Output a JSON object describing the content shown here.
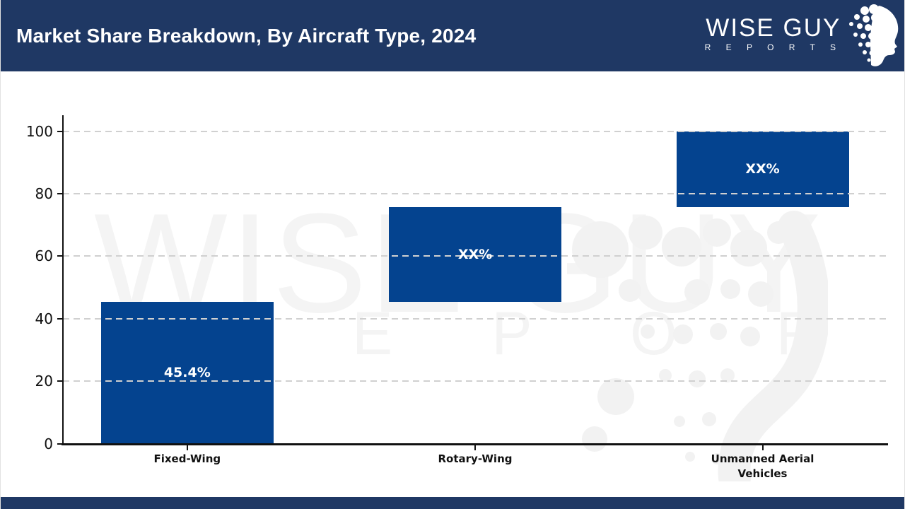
{
  "header": {
    "title": "Market Share Breakdown, By Aircraft Type, 2024",
    "logo": {
      "line1": "WISE GUY",
      "line2": "R E P O R T S"
    }
  },
  "watermark": {
    "line1": "WISE GUY",
    "line2": "R E P O R T S"
  },
  "colors": {
    "header_bg": "#1f3864",
    "footer_bg": "#1f3864",
    "bar": "#04438f",
    "gridline": "#d0d0d0",
    "axis": "#111111",
    "bar_label_text": "#ffffff",
    "title_text": "#ffffff",
    "watermark": "#f4f4f4"
  },
  "chart_data": {
    "type": "bar",
    "subtype": "waterfall",
    "title": "Market Share Breakdown, By Aircraft Type, 2024",
    "categories": [
      "Fixed-Wing",
      "Rotary-Wing",
      "Unmanned Aerial Vehicles"
    ],
    "segments": [
      {
        "label": "Fixed-Wing",
        "display": "Fixed-Wing",
        "start": 0,
        "end": 45.4,
        "value_label": "45.4%"
      },
      {
        "label": "Rotary-Wing",
        "display": "Rotary-Wing",
        "start": 45.4,
        "end": 75.6,
        "value_label": "XX%"
      },
      {
        "label": "Unmanned Aerial Vehicles",
        "display": "Unmanned Aerial\nVehicles",
        "start": 75.6,
        "end": 100,
        "value_label": "XX%"
      }
    ],
    "ylim": [
      0,
      100
    ],
    "yticks": [
      0,
      20,
      40,
      60,
      80,
      100
    ],
    "xlabel": "",
    "ylabel": "",
    "grid": "dashed-horizontal",
    "legend": "none"
  }
}
